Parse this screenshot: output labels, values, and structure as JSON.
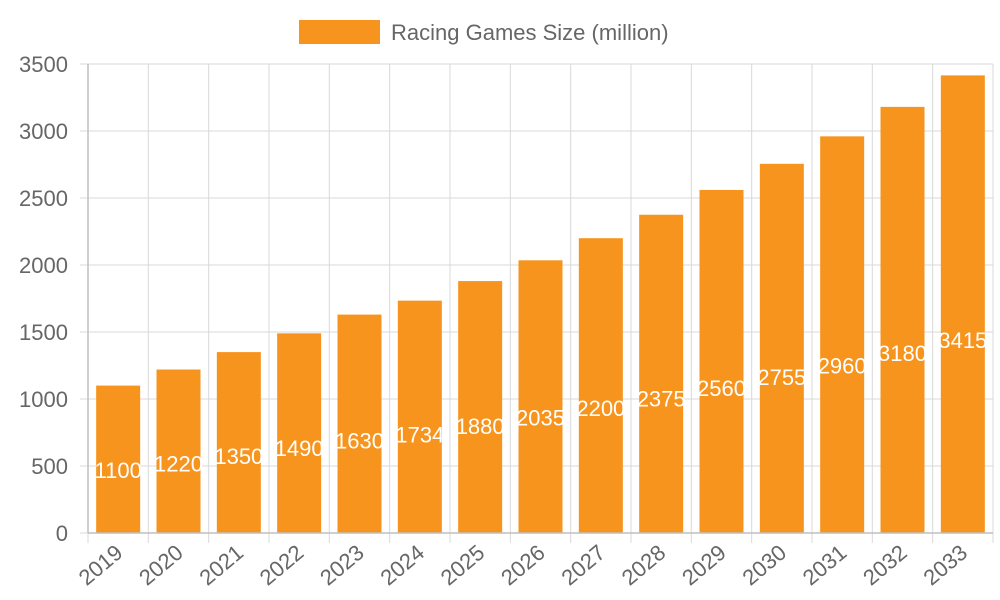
{
  "chart_data": {
    "type": "bar",
    "categories": [
      "2019",
      "2020",
      "2021",
      "2022",
      "2023",
      "2024",
      "2025",
      "2026",
      "2027",
      "2028",
      "2029",
      "2030",
      "2031",
      "2032",
      "2033"
    ],
    "series": [
      {
        "name": "Racing Games Size (million)",
        "values": [
          1100,
          1220,
          1350,
          1490,
          1630,
          1734,
          1880,
          2035,
          2200,
          2375,
          2560,
          2755,
          2960,
          3180,
          3415
        ],
        "data_labels": [
          "1100",
          "1220",
          "1350",
          "1490",
          "1630",
          "1734",
          "1880",
          "2035",
          "2200",
          "2375",
          "2560",
          "2755",
          "2960",
          "3180",
          "3415"
        ]
      }
    ],
    "title": "",
    "xlabel": "",
    "ylabel": "",
    "ylim": [
      0,
      3500
    ],
    "yticks": [
      "0",
      "500",
      "1000",
      "1500",
      "2000",
      "2500",
      "3000",
      "3500"
    ],
    "grid": true,
    "legend_position": "top",
    "colors": {
      "bar": "#f7941d",
      "grid": "#d9d9d9",
      "text": "#666666",
      "data_label": "#ffffff"
    }
  }
}
